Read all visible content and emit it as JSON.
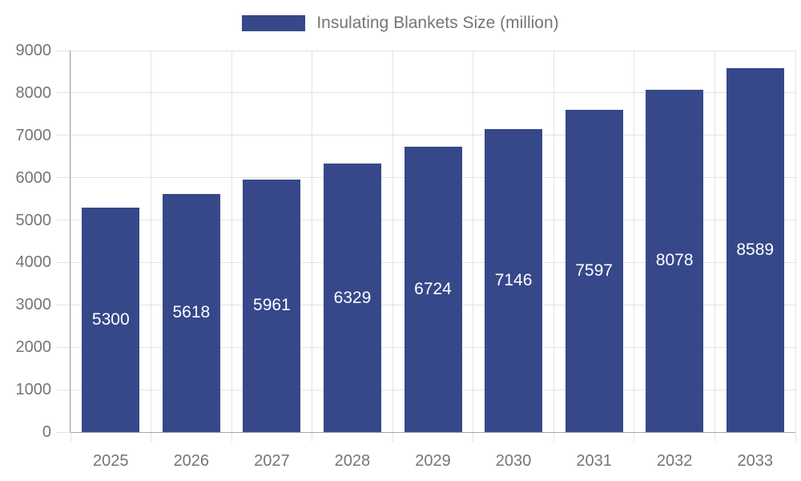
{
  "legend": {
    "label": "Insulating Blankets Size (million)"
  },
  "colors": {
    "bar": "#36488a",
    "axis_label": "#757575",
    "value_label": "#ffffff",
    "grid": "#e3e3e3",
    "axis": "#a6a6a6",
    "background": "#ffffff"
  },
  "chart_data": {
    "type": "bar",
    "title": "Insulating Blankets Size (million)",
    "series_name": "Insulating Blankets Size (million)",
    "categories": [
      "2025",
      "2026",
      "2027",
      "2028",
      "2029",
      "2030",
      "2031",
      "2032",
      "2033"
    ],
    "values": [
      5300,
      5618,
      5961,
      6329,
      6724,
      7146,
      7597,
      8078,
      8589
    ],
    "xlabel": "",
    "ylabel": "",
    "ylim": [
      0,
      9000
    ],
    "ytick_step": 1000,
    "ytick_labels": [
      "0",
      "1000",
      "2000",
      "3000",
      "4000",
      "5000",
      "6000",
      "7000",
      "8000",
      "9000"
    ],
    "grid": true,
    "legend_position": "top",
    "value_label_position": "inside-center"
  }
}
